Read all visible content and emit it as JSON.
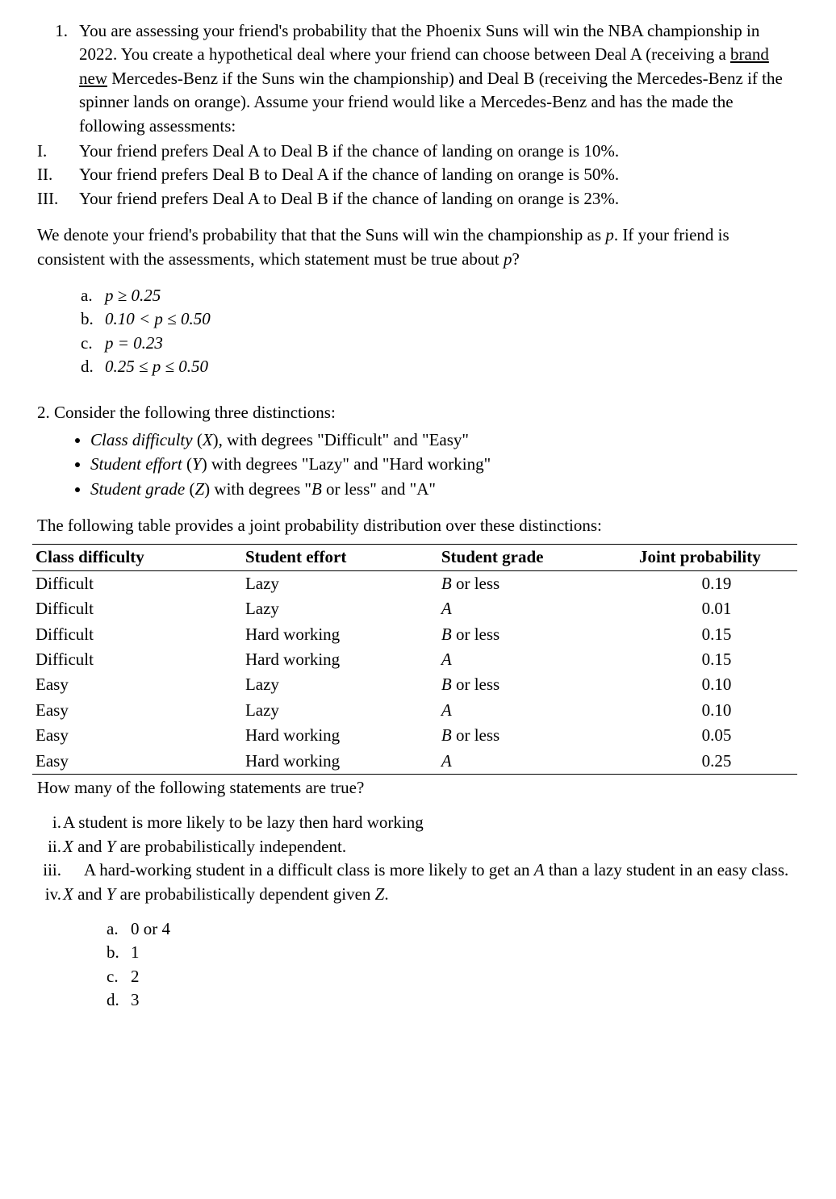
{
  "q1": {
    "number": "1.",
    "stem_before_underline": "You are assessing your friend's probability that the Phoenix Suns will win the NBA championship in 2022. You create a hypothetical deal where your friend can choose between Deal A (receiving a ",
    "underline_text": "brand new",
    "stem_after_underline": " Mercedes-Benz if the Suns win the championship) and Deal B (receiving the Mercedes-Benz if the spinner lands on orange). Assume your friend would like a Mercedes-Benz and has the made the following assessments:",
    "roman": [
      {
        "num": "I.",
        "text": "Your friend prefers Deal A to Deal B if the chance of landing on orange is 10%."
      },
      {
        "num": "II.",
        "text": "Your friend prefers Deal B to Deal A if the chance of landing on orange is 50%."
      },
      {
        "num": "III.",
        "text": "Your friend prefers Deal A to Deal B if the chance of landing on orange is 23%."
      }
    ],
    "followup_before_p": "We denote your friend's probability that that the Suns will win the championship as ",
    "followup_p": "p",
    "followup_after_p": ". If your friend is consistent with the assessments, which statement must be true about ",
    "followup_p2": "p",
    "followup_end": "?",
    "options": [
      {
        "letter": "a.",
        "math": "p ≥ 0.25"
      },
      {
        "letter": "b.",
        "math": "0.10 < p ≤ 0.50"
      },
      {
        "letter": "c.",
        "math": "p = 0.23"
      },
      {
        "letter": "d.",
        "math": "0.25 ≤ p ≤ 0.50"
      }
    ]
  },
  "q2": {
    "number": "2.",
    "stem": "Consider the following three distinctions:",
    "bullets": [
      {
        "italic": "Class difficulty",
        "rest": " (X), with degrees \"Difficult\" and \"Easy\""
      },
      {
        "italic": "Student effort",
        "rest": " (Y) with degrees \"Lazy\" and \"Hard working\""
      },
      {
        "italic": "Student grade",
        "rest": " (Z) with degrees \"B or less\" and \"A\""
      }
    ],
    "bullet_vars": [
      "X",
      "Y",
      "Z"
    ],
    "bullet_b_italic": "B",
    "table_intro": "The following table provides a joint probability distribution over these distinctions:",
    "table": {
      "headers": [
        "Class difficulty",
        "Student effort",
        "Student grade",
        "Joint probability"
      ],
      "rows": [
        [
          "Difficult",
          "Lazy",
          "B or less",
          "0.19"
        ],
        [
          "Difficult",
          "Lazy",
          "A",
          "0.01"
        ],
        [
          "Difficult",
          "Hard working",
          "B or less",
          "0.15"
        ],
        [
          "Difficult",
          "Hard working",
          "A",
          "0.15"
        ],
        [
          "Easy",
          "Lazy",
          "B or less",
          "0.10"
        ],
        [
          "Easy",
          "Lazy",
          "A",
          "0.10"
        ],
        [
          "Easy",
          "Hard working",
          "B or less",
          "0.05"
        ],
        [
          "Easy",
          "Hard working",
          "A",
          "0.25"
        ]
      ]
    },
    "followup": "How many of the following statements are true?",
    "statements": [
      {
        "num": "i.",
        "text": "A student is more likely to be lazy then hard working"
      },
      {
        "num": "ii.",
        "pre": "",
        "x": "X",
        "mid": " and ",
        "y": "Y",
        "post": " are probabilistically independent."
      },
      {
        "num": "iii.",
        "pre": "A hard-working student in a difficult class is more likely to get an ",
        "a": "A",
        "post": " than a lazy student in an easy class."
      },
      {
        "num": "iv.",
        "pre": "",
        "x": "X",
        "mid": " and ",
        "y": "Y",
        "post2a": " are probabilistically dependent given ",
        "z": "Z",
        "post2b": "."
      }
    ],
    "options": [
      {
        "letter": "a.",
        "text": "0 or 4"
      },
      {
        "letter": "b.",
        "text": "1"
      },
      {
        "letter": "c.",
        "text": "2"
      },
      {
        "letter": "d.",
        "text": "3"
      }
    ]
  }
}
